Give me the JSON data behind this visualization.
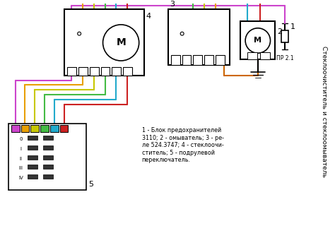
{
  "title": "Стеклоочиститель и стеклоомыватель",
  "legend_text": "1 - Блок предохранителей\n3110; 2 - омыватель; 3 - ре-\nле 524.3747; 4 - стеклоочи-\nститель; 5 - подрулевой\nпереключатель.",
  "label1": "1",
  "label2": "2",
  "label3": "3",
  "label4": "4",
  "label5": "5",
  "label_pr21": "ПР 2.1",
  "bg_color": "#ffffff",
  "term_colors": [
    "#cc44cc",
    "#e8a000",
    "#c8c800",
    "#44bb44",
    "#22aacc",
    "#cc2222"
  ],
  "wire_colors": [
    "#cc2222",
    "#22aacc",
    "#44bb44",
    "#c8c800",
    "#e8a000",
    "#cc6600"
  ]
}
